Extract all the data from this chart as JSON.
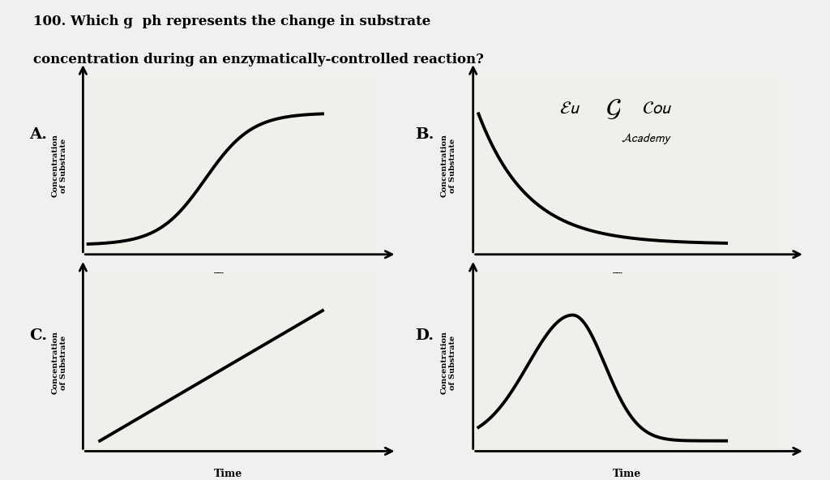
{
  "title_line1": "100. Which g  ph represents the change in substrate",
  "title_line2": "concentration during an enzymatically-controlled reaction?",
  "bg_color": "#f0f0ee",
  "panel_bg": "#eef0ea",
  "label_A": "A.",
  "label_B": "B.",
  "label_C": "C.",
  "label_D": "D.",
  "ylabel": "Concentration\nof Substrate",
  "xlabel": "Time",
  "line_color": "#000000",
  "line_width": 2.8,
  "axis_lw": 2.0,
  "ylabel_fontsize": 7,
  "xlabel_fontsize": 9,
  "label_fontsize": 14
}
